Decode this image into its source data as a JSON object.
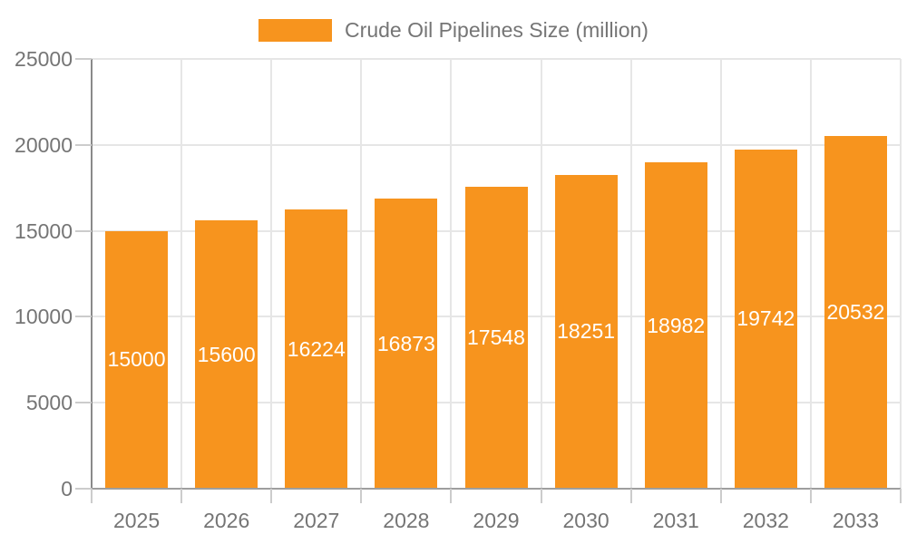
{
  "chart_data": {
    "type": "bar",
    "title": "Crude Oil Pipelines Size (million)",
    "categories": [
      "2025",
      "2026",
      "2027",
      "2028",
      "2029",
      "2030",
      "2031",
      "2032",
      "2033"
    ],
    "values": [
      15000,
      15600,
      16224,
      16873,
      17548,
      18251,
      18982,
      19742,
      20532
    ],
    "xlabel": "",
    "ylabel": "",
    "ylim": [
      0,
      25000
    ],
    "yticks": [
      0,
      5000,
      10000,
      15000,
      20000,
      25000
    ],
    "grid": true,
    "legend_position": "top-center",
    "bar_label_position": "inside-center",
    "colors": {
      "bar": "#f7941e",
      "bar_label": "#ffffff",
      "tick_label": "#757575",
      "legend_text": "#757575",
      "gridline": "#e6e6e6",
      "axis_line": "#9e9e9e"
    }
  }
}
